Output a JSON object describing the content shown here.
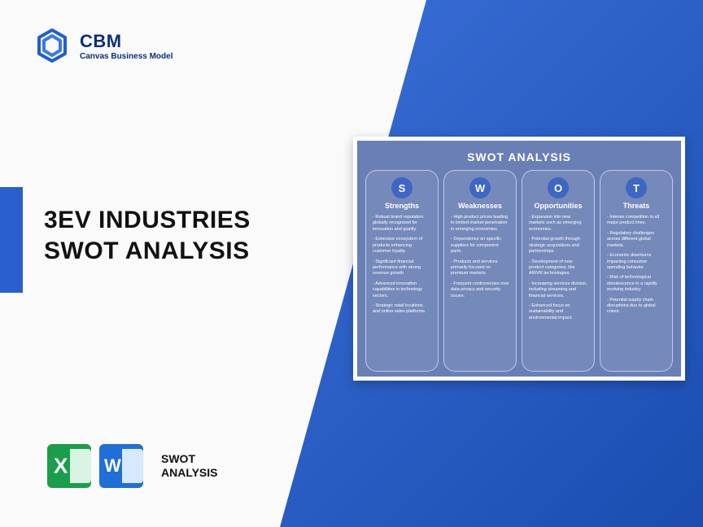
{
  "brand": {
    "name": "CBM",
    "tagline": "Canvas Business Model"
  },
  "title_line1": "3EV INDUSTRIES",
  "title_line2": "SWOT ANALYSIS",
  "footer_label_line1": "SWOT",
  "footer_label_line2": "ANALYSIS",
  "colors": {
    "blue_grad_a": "#3a6fd8",
    "blue_grad_b": "#1b4db0",
    "accent_bar": "#2a5fd0",
    "brand_text": "#0a2f7a",
    "card_bg": "#6a7fb5",
    "badge_bg": "#3e66c4",
    "excel_green": "#1b9e4b",
    "word_blue": "#1f6fd6"
  },
  "swot": {
    "card_title": "SWOT ANALYSIS",
    "columns": [
      {
        "letter": "S",
        "heading": "Strengths",
        "items": [
          "Robust brand reputation globally recognized for innovation and quality.",
          "Extensive ecosystem of products enhancing customer loyalty.",
          "Significant financial performance with strong revenue growth.",
          "Advanced innovation capabilities in technology sectors.",
          "Strategic retail locations and online sales platforms."
        ]
      },
      {
        "letter": "W",
        "heading": "Weaknesses",
        "items": [
          "High product prices leading to limited market penetration in emerging economies.",
          "Dependence on specific suppliers for component parts.",
          "Products and services primarily focused on premium markets.",
          "Frequent controversies over data privacy and security issues."
        ]
      },
      {
        "letter": "O",
        "heading": "Opportunities",
        "items": [
          "Expansion into new markets such as emerging economies.",
          "Potential growth through strategic acquisitions and partnerships.",
          "Development of new product categories, like AR/VR technologies.",
          "Increasing services division, including streaming and financial services.",
          "Enhanced focus on sustainability and environmental impact."
        ]
      },
      {
        "letter": "T",
        "heading": "Threats",
        "items": [
          "Intense competition in all major product lines.",
          "Regulatory challenges across different global markets.",
          "Economic downturns impacting consumer spending behavior.",
          "Risk of technological obsolescence in a rapidly evolving industry.",
          "Potential supply chain disruptions due to global crises."
        ]
      }
    ]
  }
}
